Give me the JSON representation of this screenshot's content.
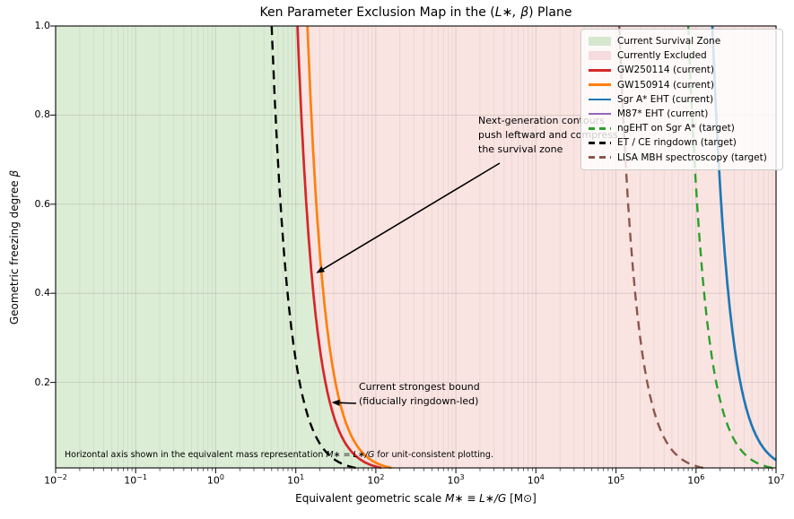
{
  "title": {
    "prefix": "Ken Parameter Exclusion Map in the (",
    "math": "L∗, β",
    "suffix": ") Plane"
  },
  "ylabel": {
    "text": "Geometric freezing degree ",
    "math": "β"
  },
  "xlabel": {
    "prefix": "Equivalent geometric scale  ",
    "math": "M∗ ≡ L∗/G",
    "suffix": "  [M⊙]"
  },
  "footnote": {
    "prefix": "Horizontal axis shown in the equivalent mass representation ",
    "math": "M∗ = L∗/G",
    "suffix": " for unit-consistent plotting."
  },
  "annotations": [
    {
      "id": "nextgen",
      "text": "Next-generation contours\npush leftward and compress\nthe survival zone",
      "arrow_to": {
        "m": 18,
        "beta": 0.445
      }
    },
    {
      "id": "bound",
      "text": "Current strongest bound\n(fiducially ringdown-led)",
      "arrow_to": {
        "m": 28,
        "beta": 0.155
      }
    }
  ],
  "legend": {
    "items": [
      {
        "label": "Current Survival Zone",
        "swatch": "patch",
        "color": "#d5e8cf"
      },
      {
        "label": "Currently Excluded",
        "swatch": "patch",
        "color": "#f6dcdc"
      },
      {
        "label": "GW250114 (current)",
        "swatch": "line",
        "color": "#d62728"
      },
      {
        "label": "GW150914 (current)",
        "swatch": "line",
        "color": "#ff7f0e"
      },
      {
        "label": "Sgr A* EHT (current)",
        "swatch": "line",
        "color": "#1f77b4"
      },
      {
        "label": "M87* EHT (current)",
        "swatch": "line",
        "color": "#9467bd"
      },
      {
        "label": "ngEHT on Sgr A* (target)",
        "swatch": "dashed",
        "color": "#2ca02c"
      },
      {
        "label": "ET / CE ringdown (target)",
        "swatch": "dashed",
        "color": "#000000"
      },
      {
        "label": "LISA MBH spectroscopy (target)",
        "swatch": "dashed",
        "color": "#8c564b"
      }
    ]
  },
  "chart_data": {
    "type": "line",
    "title": "Ken Parameter Exclusion Map in the (L∗, β) Plane",
    "xlabel": "Equivalent geometric scale M∗ ≡ L∗/G [M⊙]",
    "ylabel": "Geometric freezing degree β",
    "x_axis": {
      "scale": "log",
      "range": [
        0.01,
        10000000
      ],
      "tick_exponents": [
        -2,
        -1,
        0,
        1,
        2,
        3,
        4,
        5,
        6,
        7
      ],
      "minor_gridlines": true
    },
    "y_axis": {
      "scale": "linear",
      "range": [
        0.008,
        1.0
      ],
      "ticks": [
        1.0,
        0.8,
        0.6,
        0.4,
        0.2
      ]
    },
    "model": "Each exclusion contour follows M_threshold(beta) = M1 / sqrt(beta); the survival zone is the region left of the GW250114 contour",
    "regions": {
      "survival": {
        "label": "Current Survival Zone",
        "fill": "#dcedd6",
        "bounded_by": "GW250114 (current)"
      },
      "excluded": {
        "label": "Currently Excluded",
        "fill": "#fae4e2"
      }
    },
    "series": [
      {
        "name": "ET / CE ringdown (target)",
        "color": "#000000",
        "style": "dashed",
        "M1_solar": 5,
        "visible": true
      },
      {
        "name": "LISA MBH spectroscopy (target)",
        "color": "#8c564b",
        "style": "dashed",
        "M1_solar": 110000,
        "visible": true
      },
      {
        "name": "ngEHT on Sgr A* (target)",
        "color": "#2ca02c",
        "style": "dashed",
        "M1_solar": 800000,
        "visible": true
      },
      {
        "name": "GW250114 (current)",
        "color": "#d62728",
        "style": "solid",
        "M1_solar": 10.5,
        "visible": true,
        "role": "survival-boundary"
      },
      {
        "name": "GW150914 (current)",
        "color": "#ff7f0e",
        "style": "solid",
        "M1_solar": 14,
        "visible": true
      },
      {
        "name": "Sgr A* EHT (current)",
        "color": "#1f77b4",
        "style": "solid",
        "M1_solar": 1600000,
        "visible": true
      },
      {
        "name": "M87* EHT (current)",
        "color": "#9467bd",
        "style": "solid",
        "M1_solar": null,
        "visible": false,
        "off_scale": true
      }
    ]
  }
}
